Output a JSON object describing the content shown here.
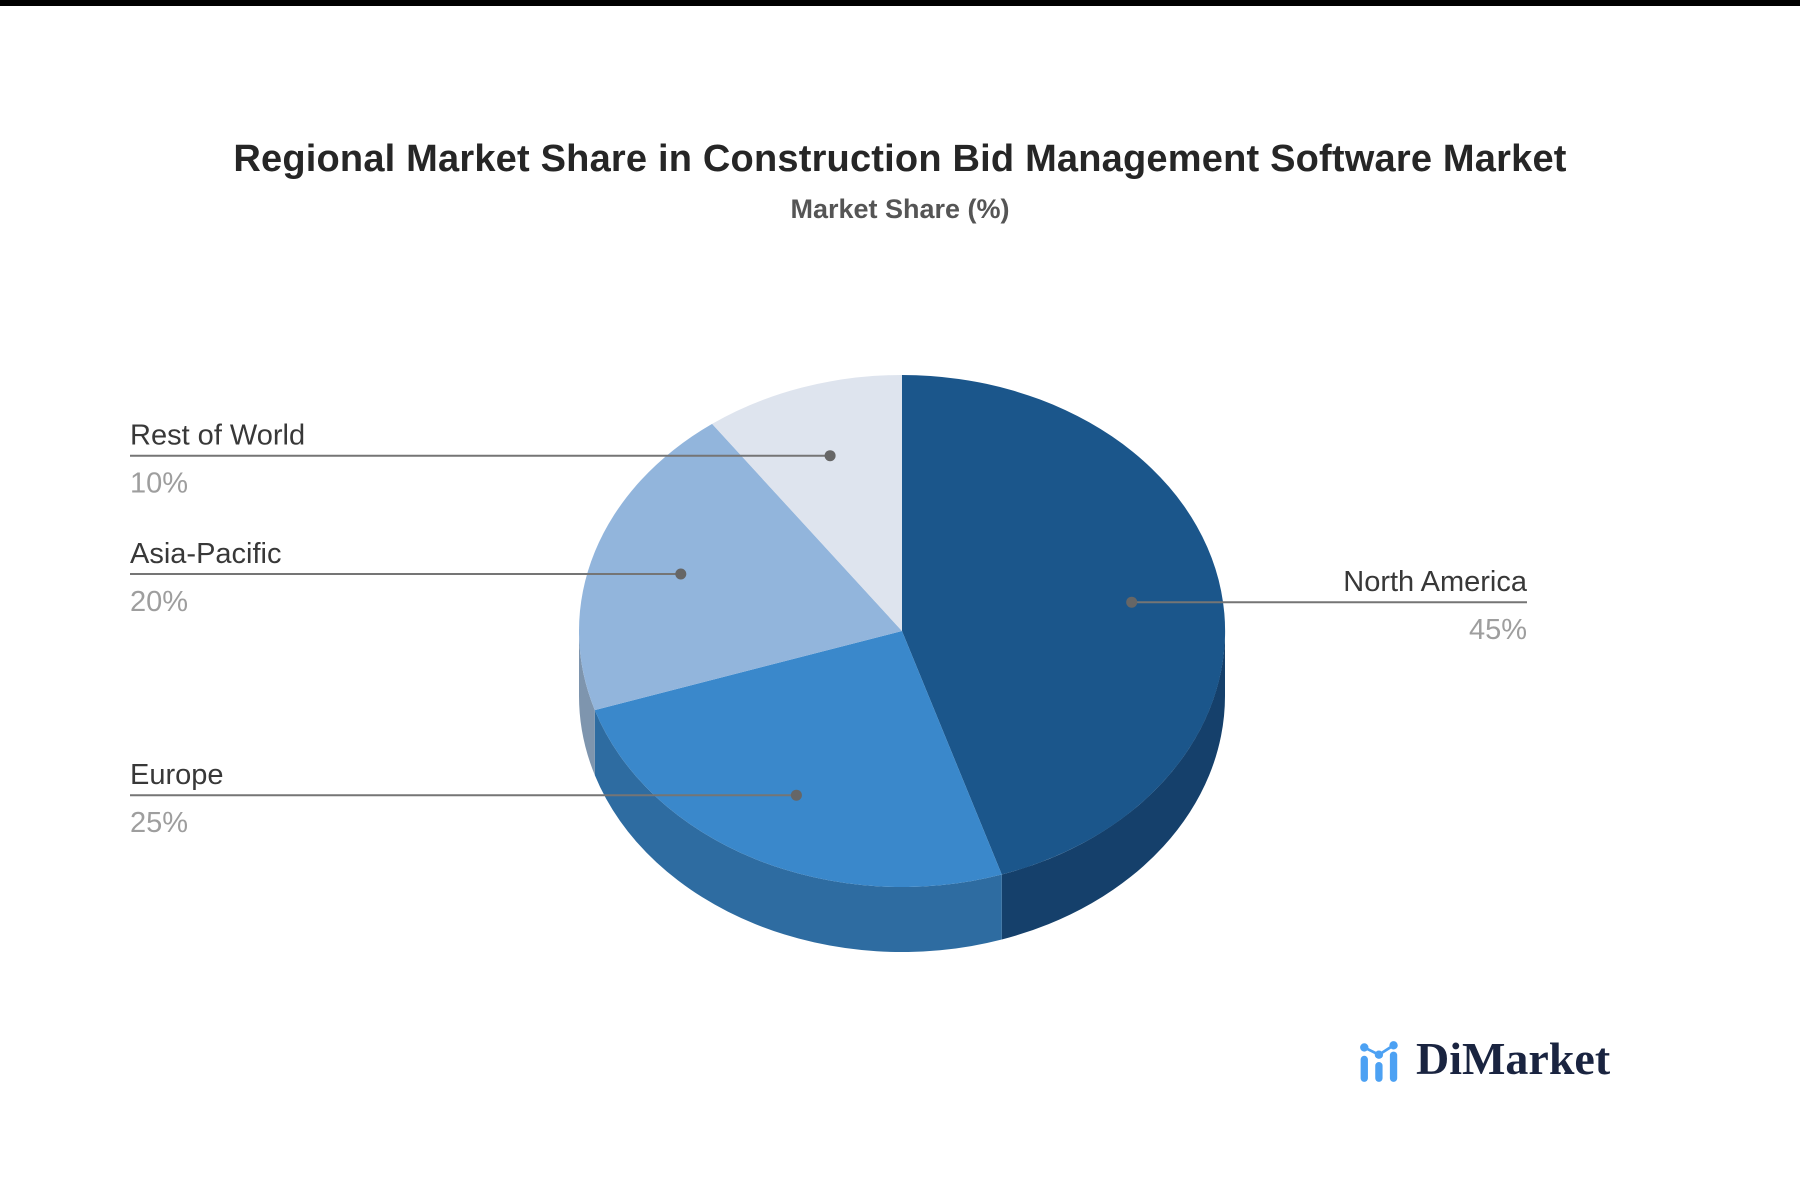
{
  "title": "Regional Market Share in Construction Bid Management Software Market",
  "subtitle": "Market Share (%)",
  "brand": {
    "name": "DiMarket",
    "icon": "bar-line-chart-icon",
    "icon_color": "#4CA1F3",
    "text_color": "#1A2440"
  },
  "chart_data": {
    "type": "pie",
    "style": "3d",
    "title": "Regional Market Share in Construction Bid Management Software Market",
    "subtitle": "Market Share (%)",
    "unit": "%",
    "direction": "clockwise",
    "start_angle_deg": 0,
    "legend_position": "callout-labels",
    "slices": [
      {
        "label": "North America",
        "value": 45,
        "value_label": "45%",
        "color": "#1B568B",
        "side_color": "#15406B"
      },
      {
        "label": "Europe",
        "value": 25,
        "value_label": "25%",
        "color": "#3A88CB",
        "side_color": "#2E6CA1"
      },
      {
        "label": "Asia-Pacific",
        "value": 20,
        "value_label": "20%",
        "color": "#92B5DC",
        "side_color": "#7E95AE"
      },
      {
        "label": "Rest of World",
        "value": 10,
        "value_label": "10%",
        "color": "#DEE4EE",
        "side_color": "#B9C2D2"
      }
    ],
    "callout_style": {
      "line_color": "#757575",
      "dot_color": "#666666",
      "name_color": "#383838",
      "value_color": "#9E9E9E"
    }
  }
}
